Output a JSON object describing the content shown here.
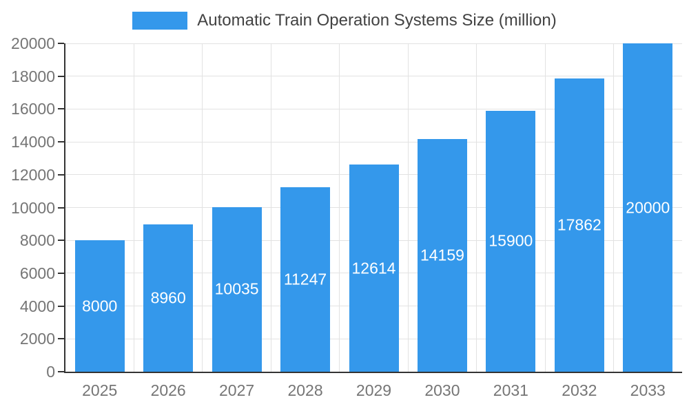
{
  "chart_data": {
    "type": "bar",
    "title": "Automatic Train Operation Systems Size (million)",
    "categories": [
      "2025",
      "2026",
      "2027",
      "2028",
      "2029",
      "2030",
      "2031",
      "2032",
      "2033"
    ],
    "values": [
      8000,
      8960,
      10035,
      11247,
      12614,
      14159,
      15900,
      17862,
      20000
    ],
    "xlabel": "",
    "ylabel": "",
    "ylim": [
      0,
      20000
    ],
    "ytick_step": 2000,
    "grid": true,
    "legend_position": "top",
    "value_labels": "inside-bar",
    "bar_color": "#3498EB",
    "value_label_color": "#ffffff",
    "axis_color": "#333333",
    "gridline_color": "#e2e2e2",
    "tick_label_color": "#757575",
    "title_color": "#424242"
  }
}
